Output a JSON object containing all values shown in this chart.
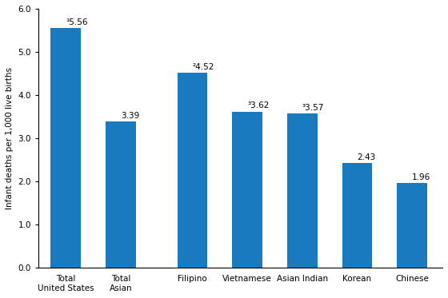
{
  "categories": [
    "Total\nUnited States",
    "Total\nAsian",
    "Filipino",
    "Vietnamese",
    "Asian Indian",
    "Korean",
    "Chinese"
  ],
  "values": [
    5.56,
    3.39,
    4.52,
    3.62,
    3.57,
    2.43,
    1.96
  ],
  "labels": [
    "¹5.56",
    "3.39",
    "²4.52",
    "³3.62",
    "³3.57",
    "2.43",
    "1.96"
  ],
  "bar_color": "#1a7abf",
  "ylabel": "Infant deaths per 1,000 live births",
  "ylim": [
    0.0,
    6.0
  ],
  "yticks": [
    0.0,
    1.0,
    2.0,
    3.0,
    4.0,
    5.0,
    6.0
  ],
  "label_fontsize": 7.5,
  "tick_fontsize": 7.5,
  "ylabel_fontsize": 7.5,
  "bar_width": 0.55,
  "bar_positions": [
    0,
    1,
    2.3,
    3.3,
    4.3,
    5.3,
    6.3
  ]
}
